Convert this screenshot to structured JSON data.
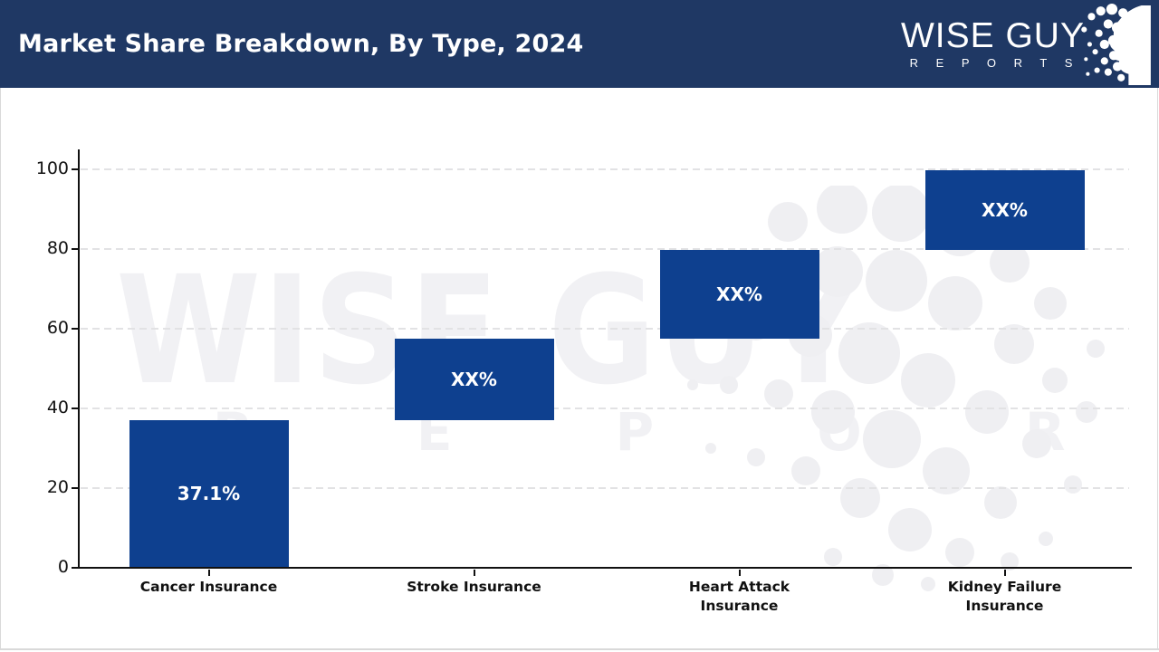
{
  "header": {
    "title": "Market Share Breakdown, By Type, 2024",
    "logo": {
      "line1": "WISE GUY",
      "line2": "R E P O R T S"
    }
  },
  "watermark": {
    "line1": "WISE GUY",
    "line2": "R E P O R T S"
  },
  "colors": {
    "header_bg": "#1f3864",
    "bar_blue": "#0e408f",
    "watermark_gray": "#f1f1f4",
    "grid_gray": "#e2e2e4"
  },
  "chart_data": {
    "type": "bar",
    "subtype": "floating-waterfall",
    "title": "Market Share Breakdown, By Type, 2024",
    "categories": [
      "Cancer Insurance",
      "Stroke Insurance",
      "Heart Attack Insurance",
      "Kidney Failure Insurance"
    ],
    "segments": [
      {
        "category": "Cancer Insurance",
        "start": 0,
        "end": 37.1,
        "label": "37.1%"
      },
      {
        "category": "Stroke Insurance",
        "start": 37.1,
        "end": 57.6,
        "label": "XX%"
      },
      {
        "category": "Heart Attack Insurance",
        "start": 57.6,
        "end": 79.8,
        "label": "XX%"
      },
      {
        "category": "Kidney Failure Insurance",
        "start": 79.8,
        "end": 99.8,
        "label": "XX%"
      }
    ],
    "y_ticks": [
      0,
      20,
      40,
      60,
      80,
      100
    ],
    "ylim": [
      0,
      105
    ],
    "xlabel": "",
    "ylabel": "",
    "grid": "horizontal-dashed",
    "legend": "none"
  }
}
